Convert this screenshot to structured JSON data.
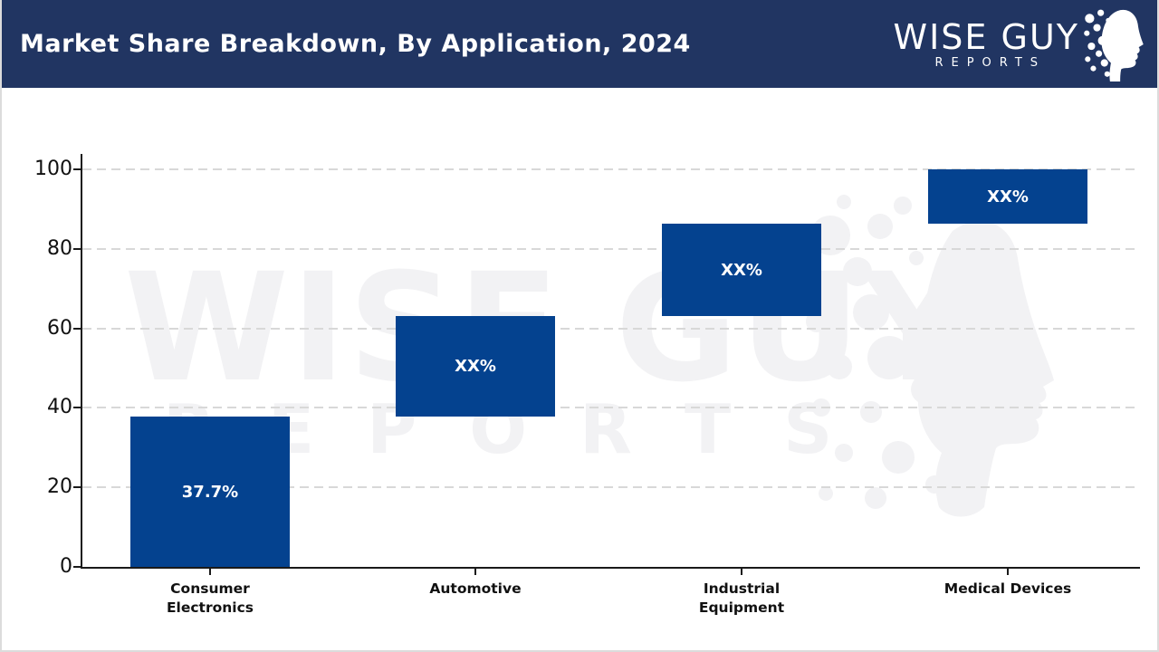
{
  "header": {
    "title": "Market Share Breakdown, By Application, 2024",
    "logo": {
      "line1": "WISE GUY",
      "line2": "REPORTS"
    }
  },
  "watermark": {
    "line1": "WISE GUY",
    "line2": "R E P O R T S"
  },
  "colors": {
    "header_bg": "#213562",
    "bar": "#04428f",
    "bar_label": "#ffffff",
    "watermark": "#f2f2f4",
    "grid": "#d8d8d8",
    "axis": "#1a1a1a",
    "text": "#111111"
  },
  "chart_data": {
    "type": "bar",
    "subtype": "waterfall",
    "title": "Market Share Breakdown, By Application, 2024",
    "xlabel": "",
    "ylabel": "",
    "ylim": [
      0,
      100
    ],
    "yticks": [
      0,
      20,
      40,
      60,
      80,
      100
    ],
    "grid": "horizontal-dashed",
    "legend": "none",
    "categories": [
      "Consumer Electronics",
      "Automotive",
      "Industrial Equipment",
      "Medical Devices"
    ],
    "points": [
      {
        "category": "Consumer Electronics",
        "category_lines": [
          "Consumer",
          "Electronics"
        ],
        "start": 0,
        "end": 37.7,
        "value": 37.7,
        "label": "37.7%"
      },
      {
        "category": "Automotive",
        "category_lines": [
          "Automotive"
        ],
        "start": 37.7,
        "end": 63.0,
        "value": 25.3,
        "label": "XX%"
      },
      {
        "category": "Industrial Equipment",
        "category_lines": [
          "Industrial",
          "Equipment"
        ],
        "start": 63.0,
        "end": 86.3,
        "value": 23.3,
        "label": "XX%"
      },
      {
        "category": "Medical Devices",
        "category_lines": [
          "Medical Devices"
        ],
        "start": 86.3,
        "end": 100,
        "value": 13.7,
        "label": "XX%"
      }
    ]
  }
}
